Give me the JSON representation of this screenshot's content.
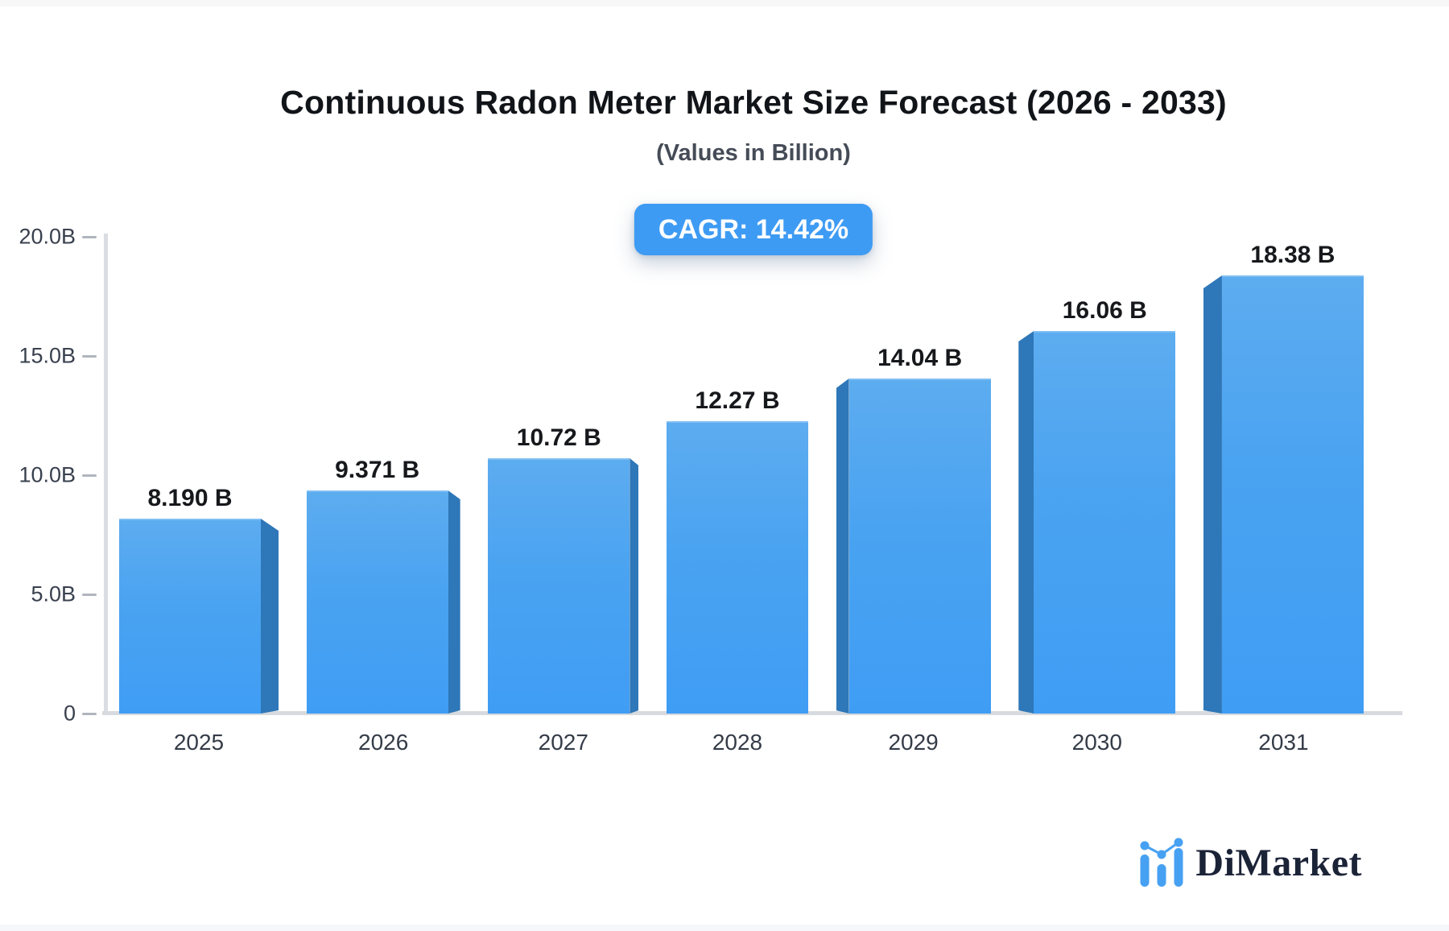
{
  "header": {
    "title": "Continuous Radon Meter Market Size Forecast (2026 - 2033)",
    "subtitle": "(Values in Billion)",
    "cagr_badge": "CAGR: 14.42%"
  },
  "brand": {
    "name": "DiMarket"
  },
  "chart_data": {
    "type": "bar",
    "title": "Continuous Radon Meter Market Size Forecast (2026 - 2033)",
    "subtitle": "(Values in Billion)",
    "annotation": "CAGR: 14.42%",
    "categories": [
      "2025",
      "2026",
      "2027",
      "2028",
      "2029",
      "2030",
      "2031"
    ],
    "values": [
      8.19,
      9.371,
      10.72,
      12.27,
      14.04,
      16.06,
      18.38
    ],
    "value_labels": [
      "8.190 B",
      "9.371 B",
      "10.72 B",
      "12.27 B",
      "14.04 B",
      "16.06 B",
      "18.38 B"
    ],
    "ylim": [
      0,
      20
    ],
    "yticks": [
      {
        "value": 20,
        "label": "20.0B"
      },
      {
        "value": 15,
        "label": "15.0B"
      },
      {
        "value": 10,
        "label": "10.0B"
      },
      {
        "value": 5,
        "label": "5.0B"
      },
      {
        "value": 0,
        "label": "0"
      }
    ],
    "grid": false,
    "legend": false,
    "colors": {
      "bar_top": "#5dacf0",
      "bar_bottom": "#3f9df4",
      "bar_side": "#2e77b8",
      "accent": "#3e9bf3"
    }
  }
}
